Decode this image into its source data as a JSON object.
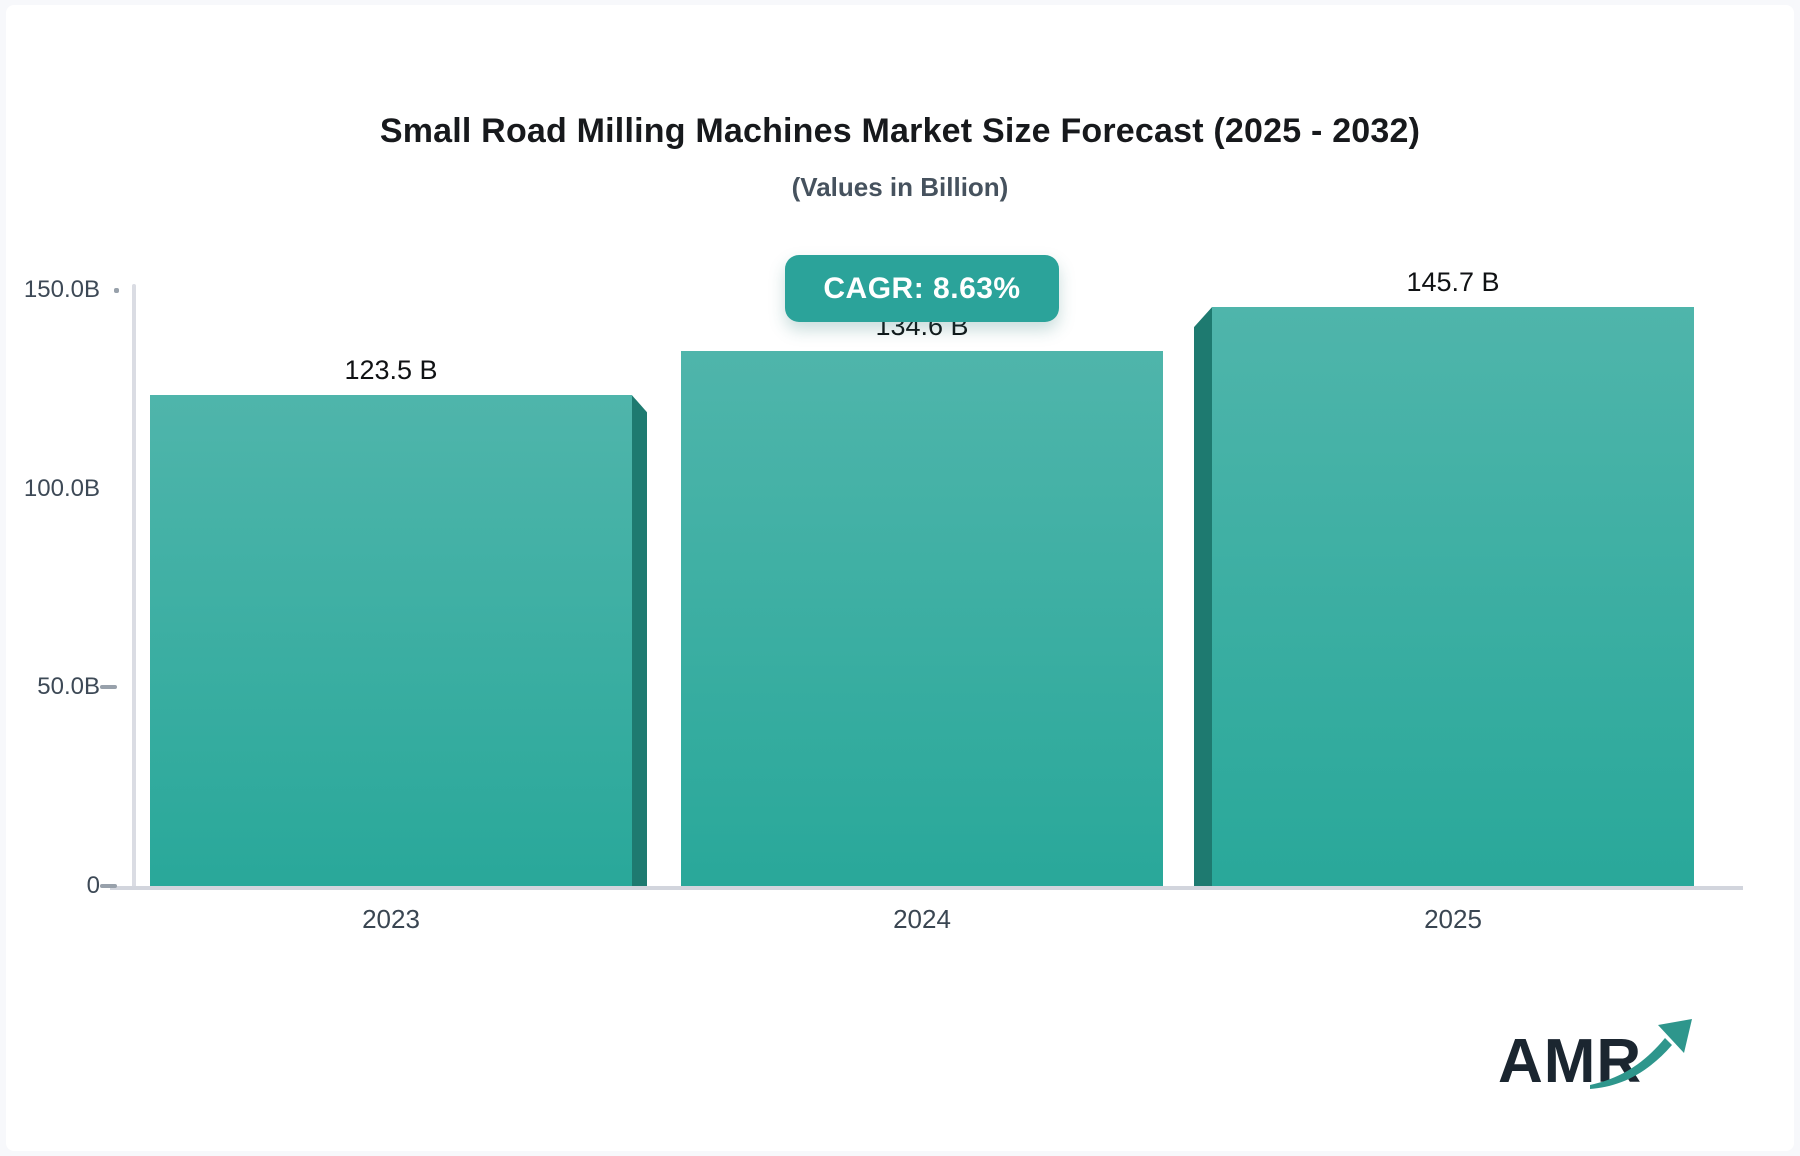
{
  "header": {
    "title": "Small Road Milling Machines Market Size Forecast (2025 - 2032)",
    "subtitle": "(Values in Billion)"
  },
  "chart_data": {
    "type": "bar",
    "title": "Small Road Milling Machines Market Size Forecast (2025 - 2032)",
    "subtitle": "(Values in Billion)",
    "categories": [
      "2023",
      "2024",
      "2025"
    ],
    "values": [
      123.5,
      134.6,
      145.7
    ],
    "value_labels": [
      "123.5 B",
      "134.6 B",
      "145.7 B"
    ],
    "annotation": "CAGR: 8.63%",
    "unit": "Billion",
    "xlabel": "",
    "ylabel": "",
    "ylim": [
      0,
      150
    ],
    "yticks": [
      {
        "value": 0,
        "label": "0"
      },
      {
        "value": 50,
        "label": "50.0B"
      },
      {
        "value": 100,
        "label": "100.0B"
      },
      {
        "value": 150,
        "label": "150.0B"
      }
    ],
    "grid": false,
    "legend": false
  },
  "colors": {
    "bar_gradient_top": "#4fb5ab",
    "bar_gradient_bottom": "#29a89a",
    "bar_side": "#1e7a70",
    "badge_background": "#2ba39a",
    "axis_line": "#dadce3",
    "baseline": "#d2d5dd",
    "title_text": "#17191c",
    "subtitle_text": "#46525e",
    "tick_text": "#3d4956",
    "logo_text": "#1b2630",
    "logo_arrow": "#2e968c"
  },
  "logo": {
    "text": "AMR"
  }
}
